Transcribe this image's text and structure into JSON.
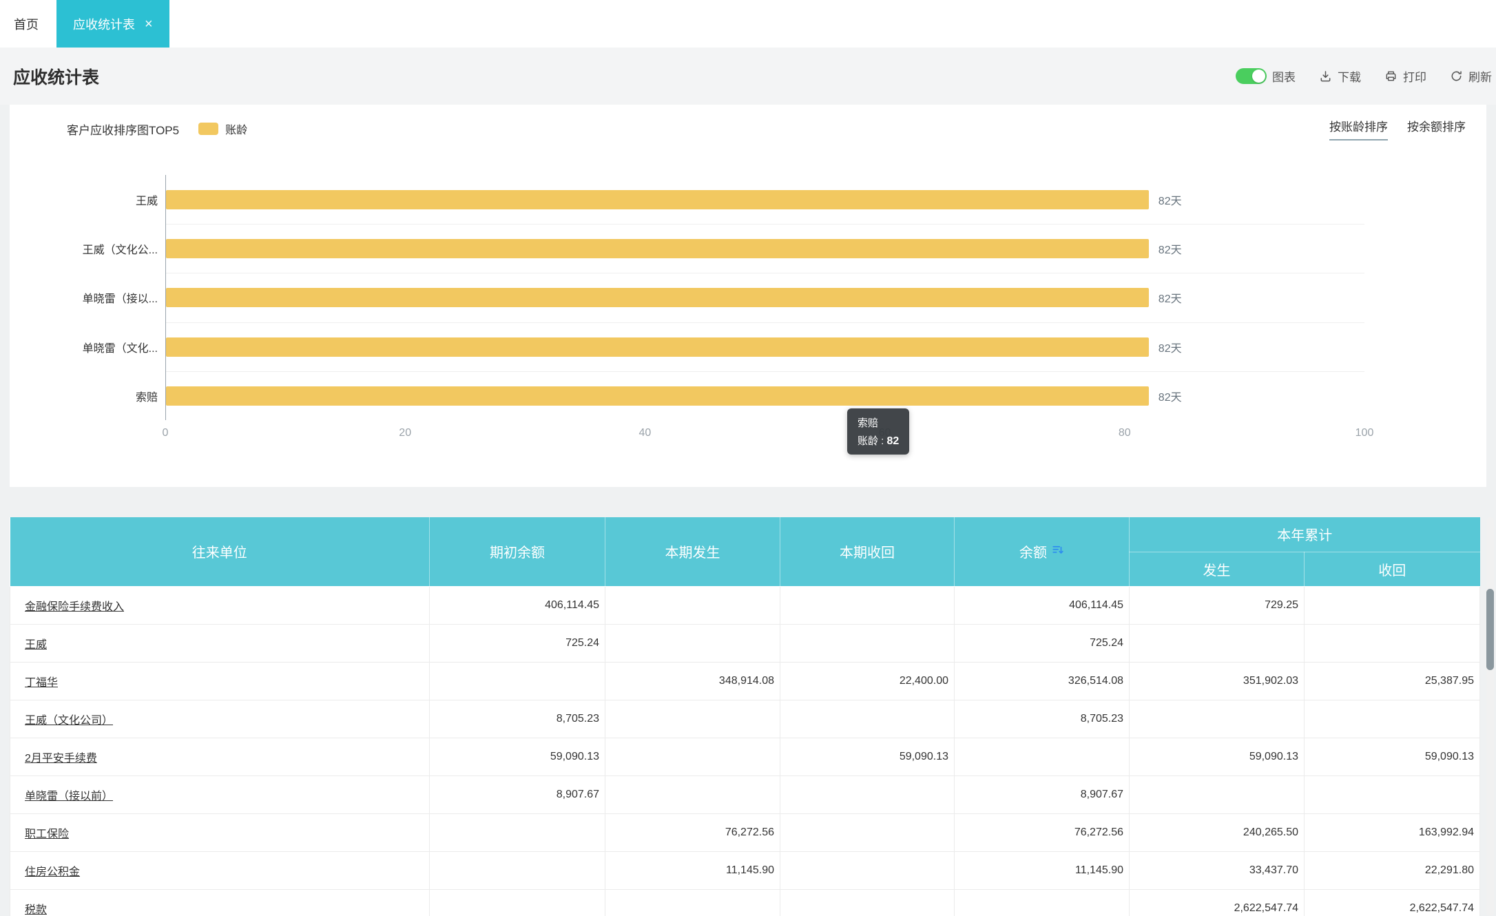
{
  "colors": {
    "accent": "#2cc0d3",
    "table_header": "#58c8d6",
    "bar": "#f2c860",
    "toggle_on": "#4ace5e"
  },
  "tabs": {
    "home": "首页",
    "active": "应收统计表",
    "close_icon": "×"
  },
  "header": {
    "title": "应收统计表",
    "toggle_label": "图表",
    "download_label": "下载",
    "print_label": "打印",
    "refresh_label": "刷新"
  },
  "chart": {
    "title": "客户应收排序图TOP5",
    "legend_label": "账龄",
    "sort_aging": "按账龄排序",
    "sort_balance": "按余额排序",
    "tooltip_title": "索赔",
    "tooltip_label": "账龄 :",
    "tooltip_value": "82"
  },
  "chart_data": {
    "type": "bar",
    "orientation": "horizontal",
    "title": "客户应收排序图TOP5",
    "series_name": "账龄",
    "categories": [
      "王威",
      "王威（文化公...",
      "单晓雷（接以...",
      "单晓雷（文化...",
      "索赔"
    ],
    "values": [
      82,
      82,
      82,
      82,
      82
    ],
    "value_suffix": "天",
    "value_labels": [
      "82天",
      "82天",
      "82天",
      "82天",
      "82天"
    ],
    "xlim": [
      0,
      100
    ],
    "x_ticks": [
      "0",
      "20",
      "40",
      "60",
      "80",
      "100"
    ],
    "legend_position": "top-left",
    "grid": true,
    "bar_color": "#f2c860"
  },
  "table": {
    "headers": {
      "company": "往来单位",
      "opening": "期初余额",
      "incurred": "本期发生",
      "recovered": "本期收回",
      "balance": "余额",
      "ytd": "本年累计",
      "ytd_incurred": "发生",
      "ytd_recovered": "收回"
    },
    "rows": [
      {
        "company": "金融保险手续费收入",
        "opening": "406,114.45",
        "incurred": "",
        "recovered": "",
        "balance": "406,114.45",
        "ytd_incurred": "729.25",
        "ytd_recovered": ""
      },
      {
        "company": "王威",
        "opening": "725.24",
        "incurred": "",
        "recovered": "",
        "balance": "725.24",
        "ytd_incurred": "",
        "ytd_recovered": ""
      },
      {
        "company": "丁福华",
        "opening": "",
        "incurred": "348,914.08",
        "recovered": "22,400.00",
        "balance": "326,514.08",
        "ytd_incurred": "351,902.03",
        "ytd_recovered": "25,387.95"
      },
      {
        "company": "王威（文化公司）",
        "opening": "8,705.23",
        "incurred": "",
        "recovered": "",
        "balance": "8,705.23",
        "ytd_incurred": "",
        "ytd_recovered": ""
      },
      {
        "company": "2月平安手续费",
        "opening": "59,090.13",
        "incurred": "",
        "recovered": "59,090.13",
        "balance": "",
        "ytd_incurred": "59,090.13",
        "ytd_recovered": "59,090.13"
      },
      {
        "company": "单晓雷（接以前）",
        "opening": "8,907.67",
        "incurred": "",
        "recovered": "",
        "balance": "8,907.67",
        "ytd_incurred": "",
        "ytd_recovered": ""
      },
      {
        "company": "职工保险",
        "opening": "",
        "incurred": "76,272.56",
        "recovered": "",
        "balance": "76,272.56",
        "ytd_incurred": "240,265.50",
        "ytd_recovered": "163,992.94"
      },
      {
        "company": "住房公积金",
        "opening": "",
        "incurred": "11,145.90",
        "recovered": "",
        "balance": "11,145.90",
        "ytd_incurred": "33,437.70",
        "ytd_recovered": "22,291.80"
      },
      {
        "company": "税款",
        "opening": "",
        "incurred": "",
        "recovered": "",
        "balance": "",
        "ytd_incurred": "2,622,547.74",
        "ytd_recovered": "2,622,547.74"
      }
    ]
  }
}
